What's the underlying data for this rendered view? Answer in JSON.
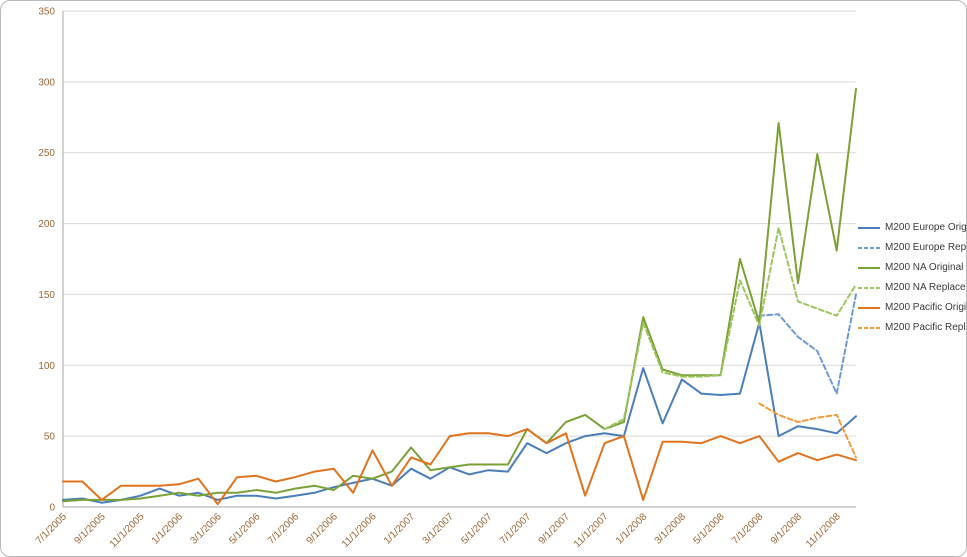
{
  "frame": {
    "background": "#ffffff",
    "border_color": "#b8b8b8"
  },
  "chart_data": {
    "type": "line",
    "title": "",
    "xlabel": "",
    "ylabel": "",
    "ylim": [
      0,
      350
    ],
    "y_ticks": [
      0,
      50,
      100,
      150,
      200,
      250,
      300,
      350
    ],
    "x_tick_every": 2,
    "grid": true,
    "legend_position": "right-outside",
    "colors": {
      "gridline": "#d9d9d9",
      "axis": "#a6a6a6",
      "tick_label": "#9a6634",
      "legend_text": "#3a3a3a"
    },
    "x": [
      "7/1/2005",
      "8/1/2005",
      "9/1/2005",
      "10/1/2005",
      "11/1/2005",
      "12/1/2005",
      "1/1/2006",
      "2/1/2006",
      "3/1/2006",
      "4/1/2006",
      "5/1/2006",
      "6/1/2006",
      "7/1/2006",
      "8/1/2006",
      "9/1/2006",
      "10/1/2006",
      "11/1/2006",
      "12/1/2006",
      "1/1/2007",
      "2/1/2007",
      "3/1/2007",
      "4/1/2007",
      "5/1/2007",
      "6/1/2007",
      "7/1/2007",
      "8/1/2007",
      "9/1/2007",
      "10/1/2007",
      "11/1/2007",
      "12/1/2007",
      "1/1/2008",
      "2/1/2008",
      "3/1/2008",
      "4/1/2008",
      "5/1/2008",
      "6/1/2008",
      "7/1/2008",
      "8/1/2008",
      "9/1/2008",
      "10/1/2008",
      "11/1/2008",
      "12/1/2008"
    ],
    "series": [
      {
        "name": "M200 Europe Original",
        "color": "#4a7eb8",
        "dash": false,
        "values": [
          5,
          6,
          3,
          5,
          8,
          13,
          8,
          10,
          5,
          8,
          8,
          6,
          8,
          10,
          14,
          17,
          20,
          15,
          27,
          20,
          28,
          23,
          26,
          25,
          45,
          38,
          45,
          50,
          52,
          50,
          98,
          59,
          90,
          80,
          79,
          80,
          130,
          50,
          57,
          55,
          52,
          64
        ]
      },
      {
        "name": "M200 Europe Replace",
        "color": "#6f9ad1",
        "dash": true,
        "values": [
          null,
          null,
          null,
          null,
          null,
          null,
          null,
          null,
          null,
          null,
          null,
          null,
          null,
          null,
          null,
          null,
          null,
          null,
          null,
          null,
          null,
          null,
          null,
          null,
          null,
          null,
          null,
          null,
          null,
          null,
          null,
          null,
          null,
          null,
          null,
          null,
          135,
          136,
          120,
          110,
          80,
          150
        ]
      },
      {
        "name": "M200 NA Original",
        "color": "#7ba136",
        "dash": false,
        "values": [
          4,
          5,
          5,
          5,
          6,
          8,
          10,
          8,
          10,
          10,
          12,
          10,
          13,
          15,
          12,
          22,
          20,
          25,
          42,
          26,
          28,
          30,
          30,
          30,
          55,
          45,
          60,
          65,
          55,
          60,
          134,
          97,
          93,
          93,
          93,
          175,
          130,
          271,
          158,
          249,
          181,
          295
        ]
      },
      {
        "name": "M200 NA Replace",
        "color": "#9cc55e",
        "dash": true,
        "values": [
          null,
          null,
          null,
          null,
          null,
          null,
          null,
          null,
          null,
          null,
          null,
          null,
          null,
          null,
          null,
          null,
          null,
          null,
          null,
          null,
          null,
          null,
          null,
          null,
          null,
          null,
          null,
          null,
          55,
          62,
          130,
          95,
          92,
          92,
          93,
          160,
          128,
          197,
          145,
          140,
          135,
          157
        ]
      },
      {
        "name": "M200 Pacific Original",
        "color": "#e0731d",
        "dash": false,
        "values": [
          18,
          18,
          5,
          15,
          15,
          15,
          16,
          20,
          2,
          21,
          22,
          18,
          21,
          25,
          27,
          10,
          40,
          15,
          35,
          30,
          50,
          52,
          52,
          50,
          55,
          45,
          52,
          8,
          45,
          50,
          5,
          46,
          46,
          45,
          50,
          45,
          50,
          32,
          38,
          33,
          37,
          33
        ]
      },
      {
        "name": "M200 Pacific Replace",
        "color": "#ee9b3f",
        "dash": true,
        "values": [
          null,
          null,
          null,
          null,
          null,
          null,
          null,
          null,
          null,
          null,
          null,
          null,
          null,
          null,
          null,
          null,
          null,
          null,
          null,
          null,
          null,
          null,
          null,
          null,
          null,
          null,
          null,
          null,
          null,
          null,
          null,
          null,
          null,
          null,
          null,
          null,
          73,
          65,
          60,
          63,
          65,
          35
        ]
      }
    ]
  }
}
